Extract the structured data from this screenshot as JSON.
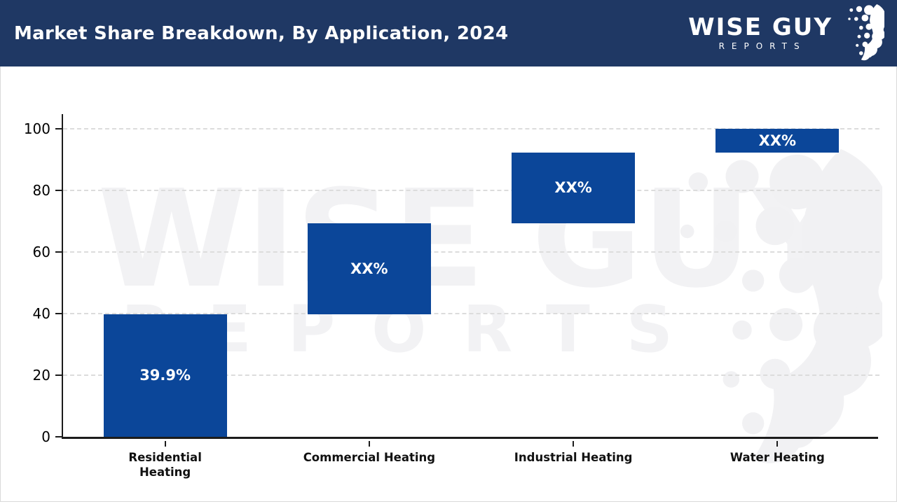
{
  "header": {
    "title": "Market Share Breakdown, By Application, 2024",
    "logo": {
      "line1": "WISE GUY",
      "line2": "REPORTS"
    }
  },
  "watermark": {
    "line1": "WISE GUY",
    "line2": "REPORTS"
  },
  "colors": {
    "header_bg": "#1f3864",
    "bar": "#0b4699",
    "bar_label": "#ffffff",
    "axis": "#1c1c1c",
    "grid": "#dcdcdc",
    "watermark": "#f2f2f4"
  },
  "chart_data": {
    "type": "bar",
    "subtype": "waterfall",
    "title": "Market Share Breakdown, By Application, 2024",
    "categories": [
      "Residential Heating",
      "Commercial Heating",
      "Industrial Heating",
      "Water Heating"
    ],
    "tick_labels": [
      "Residential\nHeating",
      "Commercial Heating",
      "Industrial Heating",
      "Water Heating"
    ],
    "segments": [
      {
        "category": "Residential Heating",
        "start": 0,
        "end": 39.9,
        "value": 39.9,
        "label": "39.9%"
      },
      {
        "category": "Commercial Heating",
        "start": 39.9,
        "end": 69.4,
        "value": 29.5,
        "label": "XX%"
      },
      {
        "category": "Industrial Heating",
        "start": 69.4,
        "end": 92.4,
        "value": 23.0,
        "label": "XX%"
      },
      {
        "category": "Water Heating",
        "start": 92.4,
        "end": 100,
        "value": 7.6,
        "label": "XX%"
      }
    ],
    "xlabel": "",
    "ylabel": "",
    "y_ticks": [
      0,
      20,
      40,
      60,
      80,
      100
    ],
    "ylim": [
      0,
      105.5
    ],
    "grid": "horizontal-dashed",
    "legend": "none"
  }
}
